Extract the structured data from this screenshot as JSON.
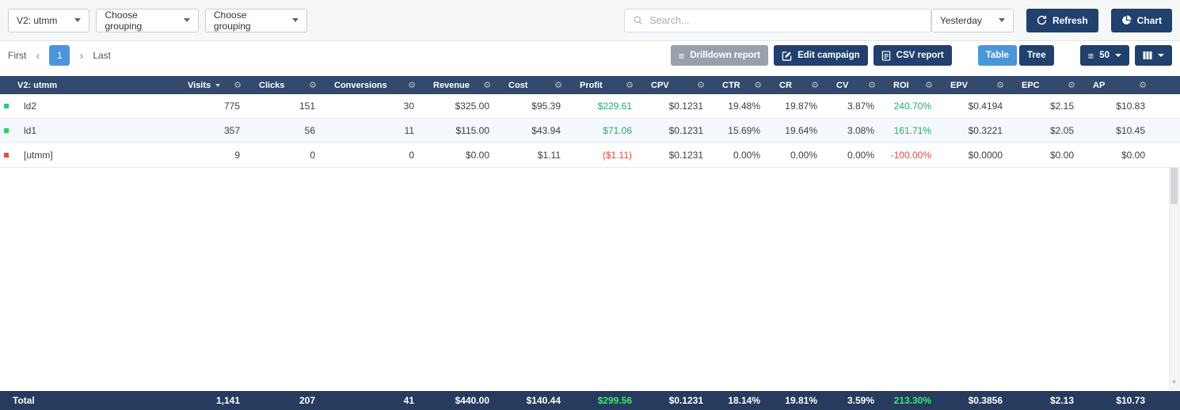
{
  "toolbar": {
    "campaign_select": "V2: utmm",
    "grouping_select_1": "Choose grouping",
    "grouping_select_2": "Choose grouping",
    "search_placeholder": "Search...",
    "date_select": "Yesterday",
    "refresh_label": "Refresh",
    "chart_label": "Chart"
  },
  "pagination": {
    "first": "First",
    "current_page": "1",
    "last": "Last"
  },
  "actions": {
    "drilldown_label": "Drilldown report",
    "edit_campaign_label": "Edit campaign",
    "csv_label": "CSV report",
    "table_label": "Table",
    "tree_label": "Tree",
    "rows_per_page": "50"
  },
  "icons": {
    "gear": "⚙",
    "list": "≡",
    "prev": "‹",
    "next": "›",
    "arrow_up": "▲",
    "arrow_down": "▼"
  },
  "colors": {
    "green": "#27ae60",
    "red": "#e8493c",
    "green_indicator": "#2ecc71",
    "red_indicator": "#e74c3c",
    "accent_blue": "#4a96db",
    "navy": "#20406e",
    "header_navy": "#33496e",
    "footer_navy": "#263b5e"
  },
  "table": {
    "columns": [
      {
        "label": "V2: utmm",
        "sort": false,
        "gear": false
      },
      {
        "label": "Visits",
        "sort": true,
        "gear": true
      },
      {
        "label": "Clicks",
        "sort": false,
        "gear": true
      },
      {
        "label": "Conversions",
        "sort": false,
        "gear": true
      },
      {
        "label": "Revenue",
        "sort": false,
        "gear": true
      },
      {
        "label": "Cost",
        "sort": false,
        "gear": true
      },
      {
        "label": "Profit",
        "sort": false,
        "gear": true
      },
      {
        "label": "CPV",
        "sort": false,
        "gear": true
      },
      {
        "label": "CTR",
        "sort": false,
        "gear": true
      },
      {
        "label": "CR",
        "sort": false,
        "gear": true
      },
      {
        "label": "CV",
        "sort": false,
        "gear": true
      },
      {
        "label": "ROI",
        "sort": false,
        "gear": true
      },
      {
        "label": "EPV",
        "sort": false,
        "gear": true
      },
      {
        "label": "EPC",
        "sort": false,
        "gear": true
      },
      {
        "label": "AP",
        "sort": false,
        "gear": true
      }
    ],
    "rows": [
      {
        "indicator": "green_indicator",
        "values": [
          "ld2",
          "775",
          "151",
          "30",
          "$325.00",
          "$95.39",
          "$229.61",
          "$0.1231",
          "19.48%",
          "19.87%",
          "3.87%",
          "240.70%",
          "$0.4194",
          "$2.15",
          "$10.83"
        ],
        "value_colors": {
          "6": "green",
          "11": "green"
        }
      },
      {
        "indicator": "green_indicator",
        "values": [
          "ld1",
          "357",
          "56",
          "11",
          "$115.00",
          "$43.94",
          "$71.06",
          "$0.1231",
          "15.69%",
          "19.64%",
          "3.08%",
          "161.71%",
          "$0.3221",
          "$2.05",
          "$10.45"
        ],
        "value_colors": {
          "6": "green",
          "11": "green"
        }
      },
      {
        "indicator": "red_indicator",
        "values": [
          "[utmm]",
          "9",
          "0",
          "0",
          "$0.00",
          "$1.11",
          "($1.11)",
          "$0.1231",
          "0.00%",
          "0.00%",
          "0.00%",
          "-100.00%",
          "$0.0000",
          "$0.00",
          "$0.00"
        ],
        "value_colors": {
          "6": "red",
          "11": "red"
        }
      }
    ],
    "total": {
      "values": [
        "Total",
        "1,141",
        "207",
        "41",
        "$440.00",
        "$140.44",
        "$299.56",
        "$0.1231",
        "18.14%",
        "19.81%",
        "3.59%",
        "213.30%",
        "$0.3856",
        "$2.13",
        "$10.73"
      ],
      "value_colors": {
        "6": "green",
        "11": "green"
      }
    }
  }
}
